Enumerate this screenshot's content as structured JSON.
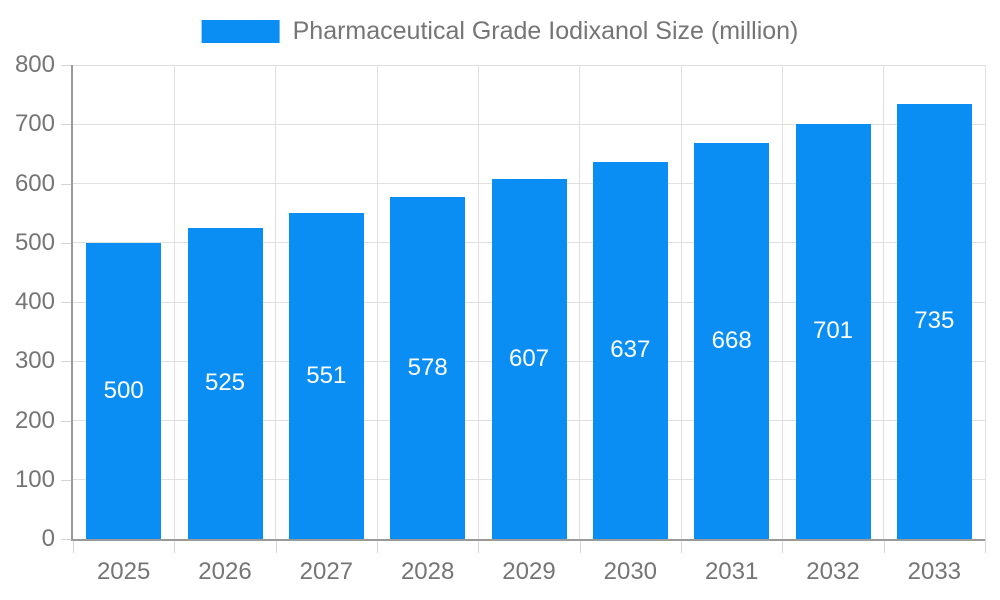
{
  "chart_data": {
    "type": "bar",
    "title": "Pharmaceutical Grade Iodixanol Size (million)",
    "categories": [
      "2025",
      "2026",
      "2027",
      "2028",
      "2029",
      "2030",
      "2031",
      "2032",
      "2033"
    ],
    "values": [
      500,
      525,
      551,
      578,
      607,
      637,
      668,
      701,
      735
    ],
    "xlabel": "",
    "ylabel": "",
    "ylim": [
      0,
      800
    ],
    "ytick_step": 100,
    "grid": true,
    "legend_position": "top-center",
    "value_labels": "centered-inside-bars",
    "colors": {
      "bar": "#0A8EF4",
      "grid": "#E0E0E0",
      "axis": "#9A9A9A",
      "tick": "#D4D4D4",
      "label_text": "#757575",
      "value_text": "#FFFFFF",
      "background": "#FFFFFF"
    }
  }
}
